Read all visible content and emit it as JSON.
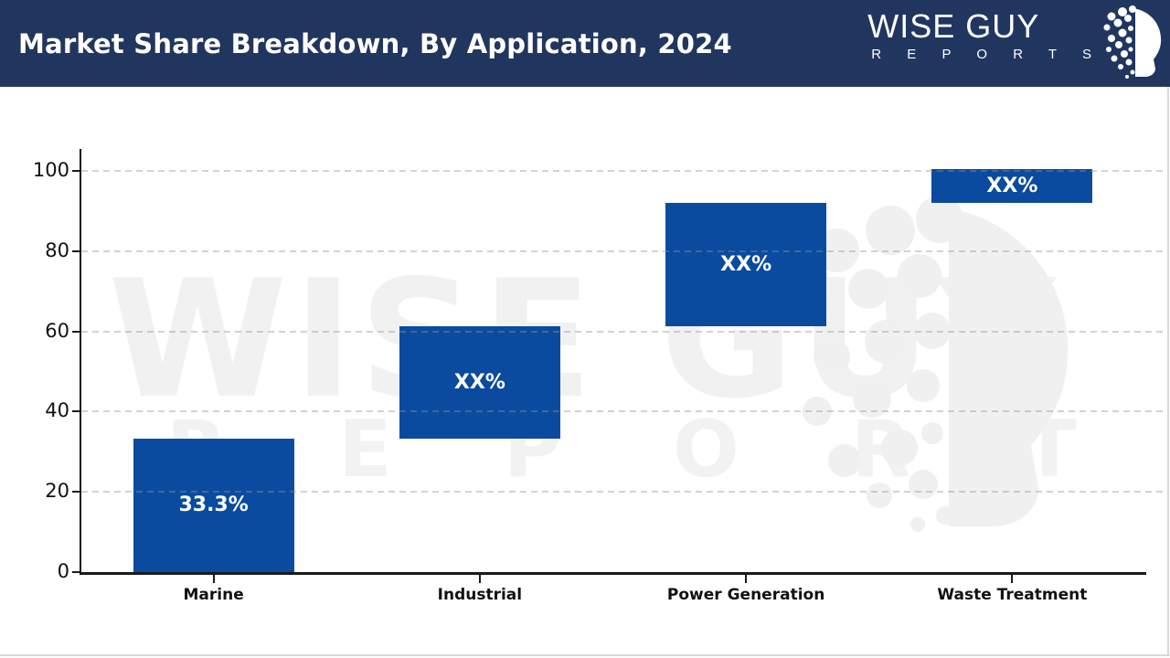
{
  "header": {
    "title": "Market Share Breakdown, By Application, 2024",
    "bg_color": "#21365F",
    "logo": {
      "line1": "WISE GUY",
      "line2": "R E P O R T S"
    }
  },
  "watermark": {
    "line1": "WISE GUY",
    "line2": "R E P O R T S"
  },
  "chart_data": {
    "type": "bar",
    "subtype": "waterfall",
    "title": "Market Share Breakdown, By Application, 2024",
    "categories": [
      "Marine",
      "Industrial",
      "Power Generation",
      "Waste Treatment"
    ],
    "segments": [
      {
        "category": "Marine",
        "start": 0,
        "end": 33.3,
        "size": 33.3,
        "label": "33.3%"
      },
      {
        "category": "Industrial",
        "start": 33.3,
        "end": 61.3,
        "size": 28.0,
        "label": "XX%"
      },
      {
        "category": "Power Generation",
        "start": 61.3,
        "end": 92.0,
        "size": 30.7,
        "label": "XX%"
      },
      {
        "category": "Waste Treatment",
        "start": 92.0,
        "end": 100.4,
        "size": 8.4,
        "label": "XX%"
      }
    ],
    "yticks": [
      0,
      20,
      40,
      60,
      80,
      100
    ],
    "ylim": [
      0,
      105
    ],
    "xlabel": "",
    "ylabel": "",
    "bar_color": "#0A4BA0",
    "grid": "horizontal dashed, light gray, drawn over bars",
    "legend": "none"
  }
}
